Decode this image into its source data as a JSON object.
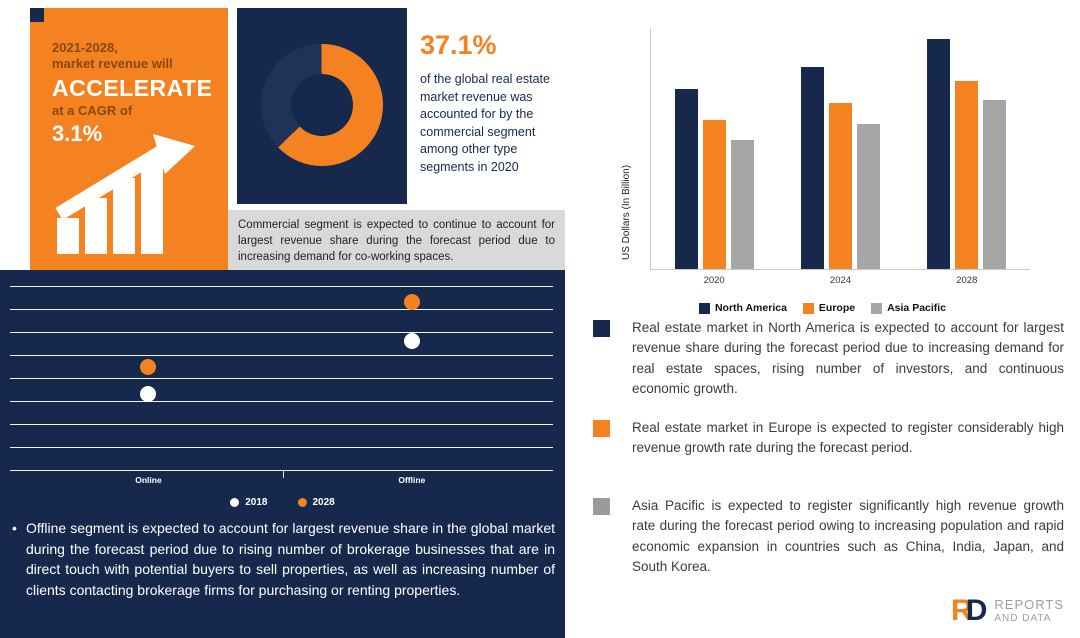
{
  "colors": {
    "orange": "#f58220",
    "navy": "#16294d",
    "gray": "#a6a6a6",
    "light_gray_box": "#d9d9d9",
    "white": "#ffffff"
  },
  "accelerate_panel": {
    "period": "2021-2028,",
    "line2": "market revenue will",
    "emphasis": "ACCELERATE",
    "line4": "at a CAGR of",
    "cagr": "3.1%"
  },
  "commercial_stat": {
    "percent": "37.1%",
    "description": "of the global real estate market revenue was accounted for by the commercial segment among other type segments in 2020",
    "note": "Commercial segment is expected to continue to account for largest revenue share during the forecast period due to increasing demand for co-working spaces."
  },
  "dot_plot": {
    "axis_labels": [
      "Online",
      "Offline"
    ],
    "legend": [
      "2018",
      "2028"
    ]
  },
  "offline_bullet": "Offline segment is expected to account for largest revenue share in the global market during the forecast period due to rising number of brokerage businesses that are in direct touch with potential buyers to sell properties, as well as increasing number of clients contacting brokerage firms for purchasing or renting properties.",
  "bar_chart": {
    "ylabel": "US Dollars (In Billion)",
    "categories": [
      "2020",
      "2024",
      "2028"
    ],
    "legend": [
      "North America",
      "Europe",
      "Asia Pacific"
    ]
  },
  "region_bullets": [
    {
      "color": "#16294d",
      "text": "Real estate market in North America is expected to account for largest revenue share during the forecast period due to increasing demand for real estate spaces, rising number of investors, and continuous economic growth."
    },
    {
      "color": "#f58220",
      "text": "Real estate market in Europe is expected to register considerably high revenue growth rate during the forecast period."
    },
    {
      "color": "#9b9b9b",
      "text": "Asia Pacific is expected to register significantly high revenue growth rate during the forecast period owing to increasing population and rapid economic expansion in countries such as China, India, Japan, and South Korea."
    }
  ],
  "logo": {
    "mark_r": "R",
    "mark_d": "D",
    "name_line1": "REPORTS",
    "name_line2": "AND DATA"
  },
  "chart_data": [
    {
      "type": "pie",
      "donut": true,
      "title": "Commercial segment share of global real estate market revenue, 2020",
      "labels": [
        "Commercial",
        "Other type segments"
      ],
      "values": [
        37.1,
        62.9
      ],
      "slice_colors": [
        "#1e3357",
        "#f58220"
      ],
      "start_angle_deg": 226
    },
    {
      "type": "scatter",
      "title": "Online vs Offline segment revenue position, 2018 vs 2028 (values estimated from gridlines, no numeric axis shown)",
      "categories": [
        "Online",
        "Offline"
      ],
      "ymax": 8,
      "series": [
        {
          "name": "2018",
          "color": "#ffffff",
          "values": [
            3.3,
            5.6
          ]
        },
        {
          "name": "2028",
          "color": "#f58220",
          "values": [
            4.5,
            7.3
          ]
        }
      ]
    },
    {
      "type": "bar",
      "title": "Real estate market revenue by region (values estimated from bar heights, axis unlabeled)",
      "categories": [
        "2020",
        "2024",
        "2028"
      ],
      "ylabel": "US Dollars (In Billion)",
      "ylim": [
        0,
        110
      ],
      "legend_position": "bottom",
      "series": [
        {
          "name": "North America",
          "color": "#16294d",
          "values": [
            82,
            92,
            105
          ]
        },
        {
          "name": "Europe",
          "color": "#f58220",
          "values": [
            68,
            76,
            86
          ]
        },
        {
          "name": "Asia Pacific",
          "color": "#a6a6a6",
          "values": [
            59,
            66,
            77
          ]
        }
      ]
    }
  ]
}
